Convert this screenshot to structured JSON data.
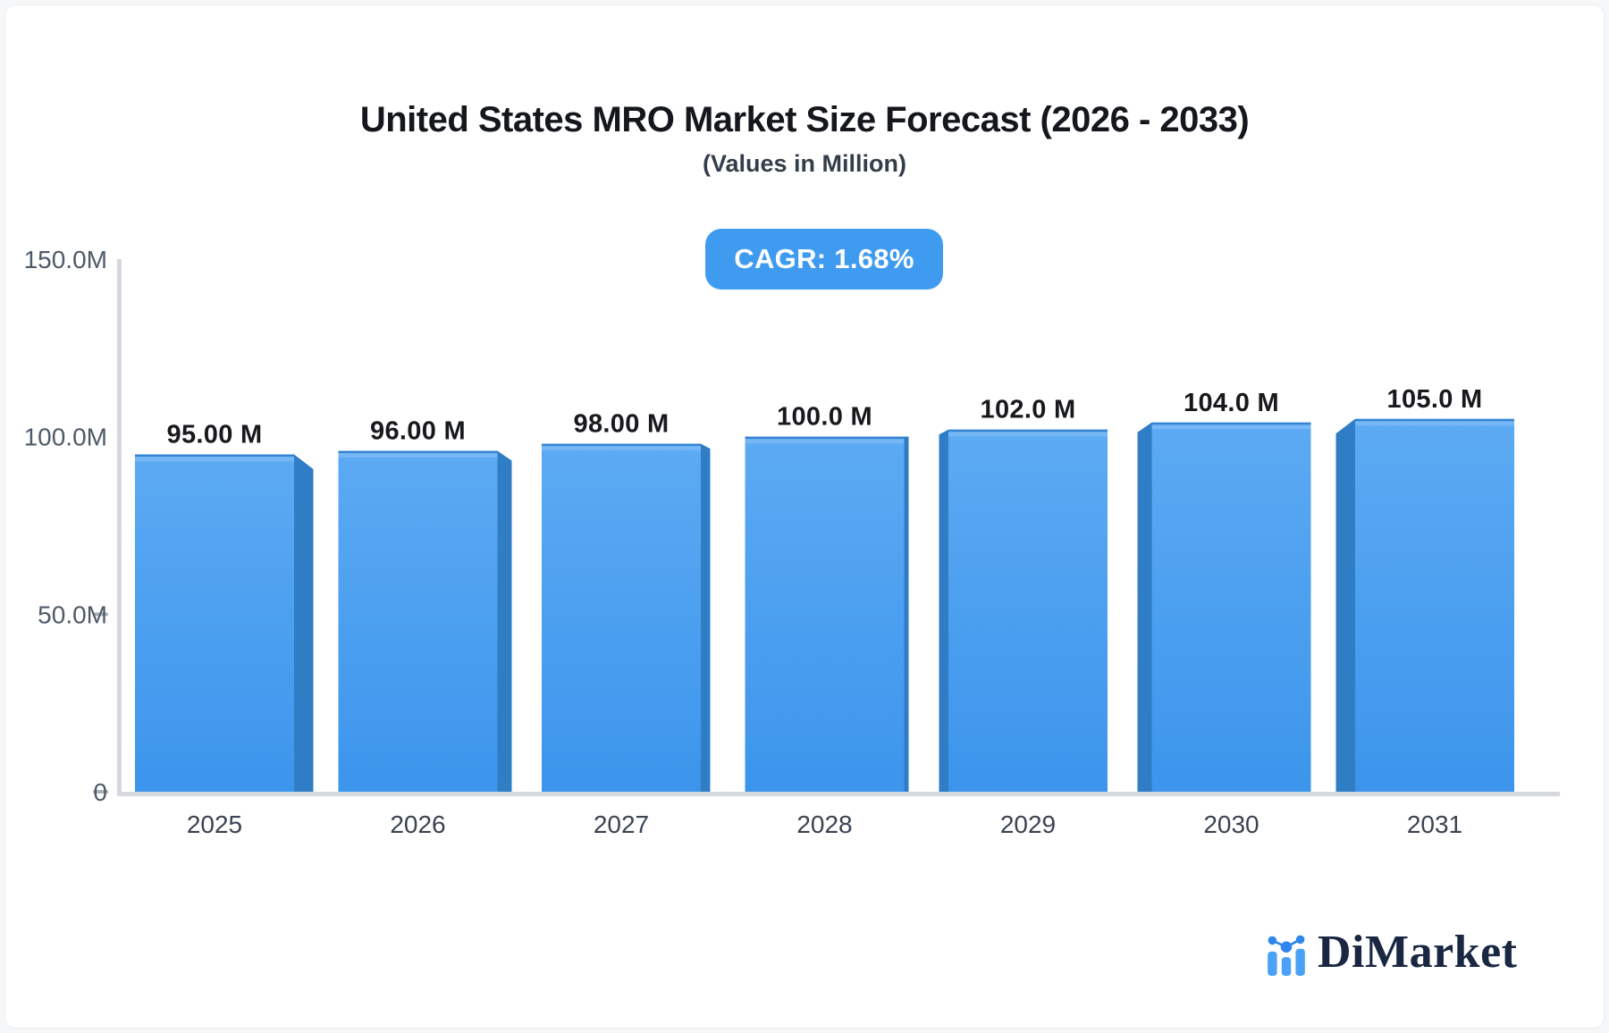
{
  "header": {
    "title": "United States MRO Market Size Forecast (2026 - 2033)",
    "subtitle": "(Values in Million)",
    "cagr_badge": "CAGR: 1.68%"
  },
  "footer": {
    "brand": "DiMarket",
    "logo_icon": "mini-bar-chart-logo-icon"
  },
  "chart_data": {
    "type": "bar",
    "title": "United States MRO Market Size Forecast (2026 - 2033)",
    "subtitle": "(Values in Million)",
    "unit": "Million",
    "categories": [
      "2025",
      "2026",
      "2027",
      "2028",
      "2029",
      "2030",
      "2031"
    ],
    "values": [
      95,
      96,
      98,
      100,
      102,
      104,
      105
    ],
    "value_labels": [
      "95.00 M",
      "96.00 M",
      "98.00 M",
      "100.0 M",
      "102.0 M",
      "104.0 M",
      "105.0 M"
    ],
    "ylim": [
      0,
      150
    ],
    "yticks": [
      {
        "value": 0,
        "label": "0",
        "dash": true
      },
      {
        "value": 50,
        "label": "50.0M",
        "dash": true
      },
      {
        "value": 100,
        "label": "100.0M",
        "dash": false
      },
      {
        "value": 150,
        "label": "150.0M",
        "dash": false
      }
    ],
    "grid": false,
    "legend": "none",
    "bar_style": "3d-column",
    "colors": {
      "bar_top": "#5caaf3",
      "bar_bottom": "#3c95ec",
      "bar_side": "#2e7dc5",
      "bar_top_edge": "#2f7fd0",
      "axis": "#d5d8dd",
      "tick_dash": "#a9b0b9",
      "value_label": "#17191c",
      "ytick_text": "#4f5a68",
      "category_text": "#3a4350",
      "badge_bg": "#3f9bf0",
      "logo_navy": "#1a2742",
      "logo_blue": "#4aa1f6",
      "logo_dot": "#2f86ee"
    }
  }
}
